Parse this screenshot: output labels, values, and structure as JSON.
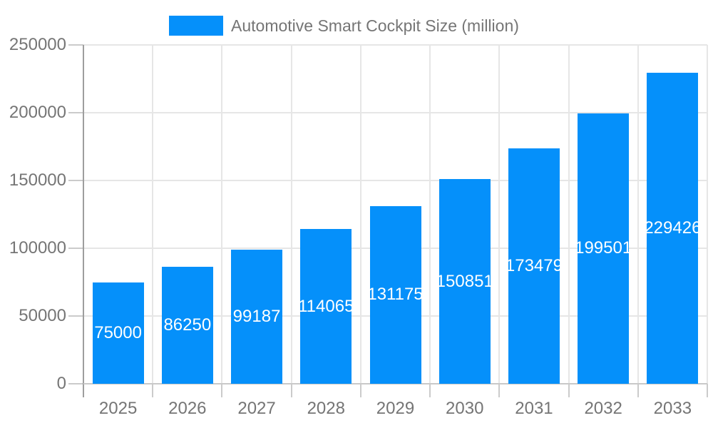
{
  "legend": {
    "label": "Automotive Smart Cockpit Size (million)"
  },
  "chart_data": {
    "type": "bar",
    "title": "Automotive Smart Cockpit Size (million)",
    "categories": [
      "2025",
      "2026",
      "2027",
      "2028",
      "2029",
      "2030",
      "2031",
      "2032",
      "2033"
    ],
    "values": [
      75000,
      86250,
      99187,
      114065,
      131175,
      150851,
      173479,
      199501,
      229426
    ],
    "xlabel": "",
    "ylabel": "",
    "ylim": [
      0,
      250000
    ],
    "ytick_step": 50000,
    "ytick_labels": [
      "0",
      "50000",
      "100000",
      "150000",
      "200000",
      "250000"
    ],
    "legend_position": "top",
    "grid": true,
    "value_label_position": "inside-center",
    "colors": {
      "bar": "#0590FA",
      "grid": "#E6E6E6",
      "y_axis_line": "#9E9E9E",
      "x_axis_line": "#C9C9C9",
      "tick": "#CBCBCB",
      "axis_text": "#757575",
      "value_text": "#FFFFFF"
    }
  }
}
